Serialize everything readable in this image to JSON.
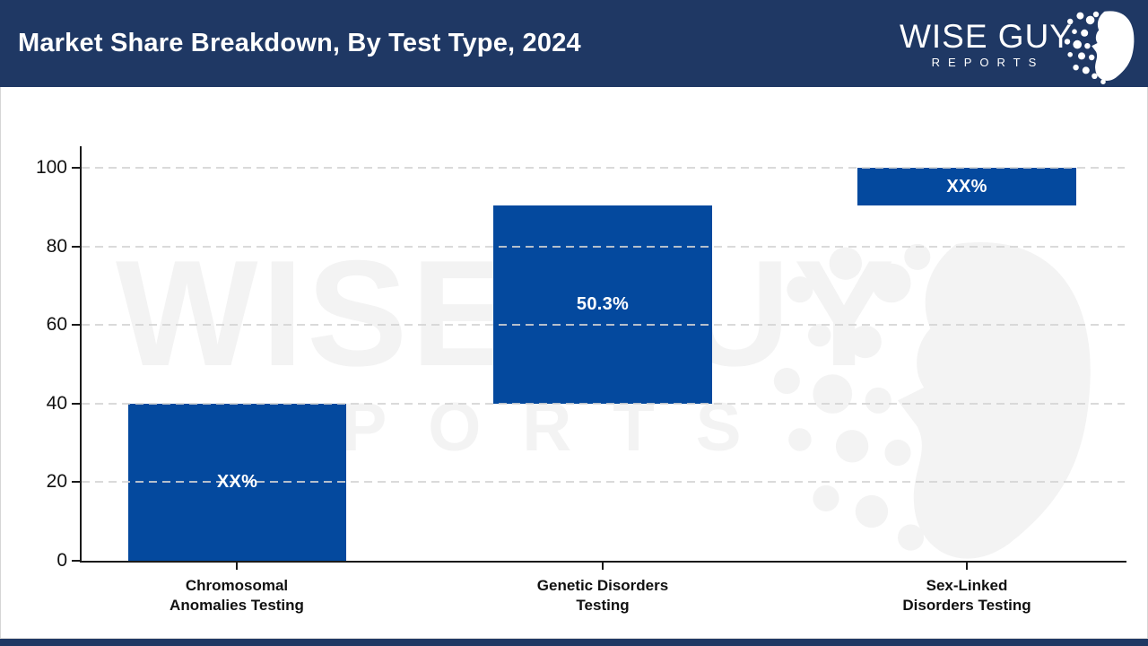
{
  "header": {
    "title": "Market Share Breakdown, By Test Type, 2024",
    "logo": {
      "line1": "WISE GUY",
      "line2": "REPORTS"
    }
  },
  "watermark": {
    "line1": "WISE GUY",
    "line2": "REPORTS"
  },
  "chart_data": {
    "type": "bar",
    "variant": "waterfall",
    "title": "Market Share Breakdown, By Test Type, 2024",
    "xlabel": "",
    "ylabel": "",
    "ylim": [
      0,
      100
    ],
    "yticks": [
      0,
      20,
      40,
      60,
      80,
      100
    ],
    "grid": "dashed-horizontal",
    "legend": "none",
    "bar_color": "#04499E",
    "header_color": "#1F3864",
    "bar_label_color": "#ffffff",
    "categories": [
      "Chromosomal Anomalies Testing",
      "Genetic Disorders Testing",
      "Sex-Linked Disorders Testing"
    ],
    "bars": [
      {
        "category": {
          "line1": "Chromosomal",
          "line2": "Anomalies Testing"
        },
        "start": 0,
        "end": 40,
        "label": "XX%"
      },
      {
        "category": {
          "line1": "Genetic Disorders",
          "line2": "Testing"
        },
        "start": 40,
        "end": 90.3,
        "label": "50.3%"
      },
      {
        "category": {
          "line1": "Sex-Linked",
          "line2": "Disorders Testing"
        },
        "start": 90.3,
        "end": 100,
        "label": "XX%"
      }
    ]
  }
}
